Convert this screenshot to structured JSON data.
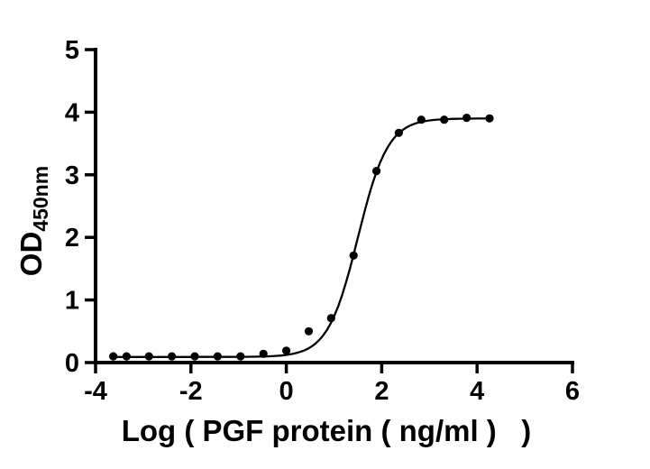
{
  "chart_data": {
    "type": "scatter",
    "title": "",
    "xlabel": "Log ( PGF protein ( ng/ml )   )",
    "ylabel_main": "OD",
    "ylabel_sub": "450nm",
    "xlim": [
      -4,
      6
    ],
    "ylim": [
      0,
      5
    ],
    "xticks": [
      -4,
      -2,
      0,
      2,
      4,
      6
    ],
    "yticks": [
      0,
      1,
      2,
      3,
      4,
      5
    ],
    "grid": false,
    "legend": "none",
    "x": [
      -3.63,
      -3.35,
      -2.88,
      -2.4,
      -1.92,
      -1.44,
      -0.96,
      -0.48,
      0.0,
      0.47,
      0.94,
      1.41,
      1.89,
      2.36,
      2.83,
      3.31,
      3.78,
      4.26
    ],
    "y": [
      0.1,
      0.1,
      0.1,
      0.1,
      0.1,
      0.1,
      0.1,
      0.14,
      0.19,
      0.5,
      0.71,
      1.71,
      3.06,
      3.67,
      3.88,
      3.88,
      3.91,
      3.9
    ],
    "fit_curve": {
      "model": "4PL-sigmoid",
      "bottom": 0.09,
      "top": 3.9,
      "log_ec50": 1.5,
      "hill_slope": 1.38,
      "x_start": -3.63,
      "x_end": 4.26
    },
    "colors": {
      "axis": "#000000",
      "points": "#000000",
      "curve": "#000000",
      "background": "#ffffff"
    }
  }
}
